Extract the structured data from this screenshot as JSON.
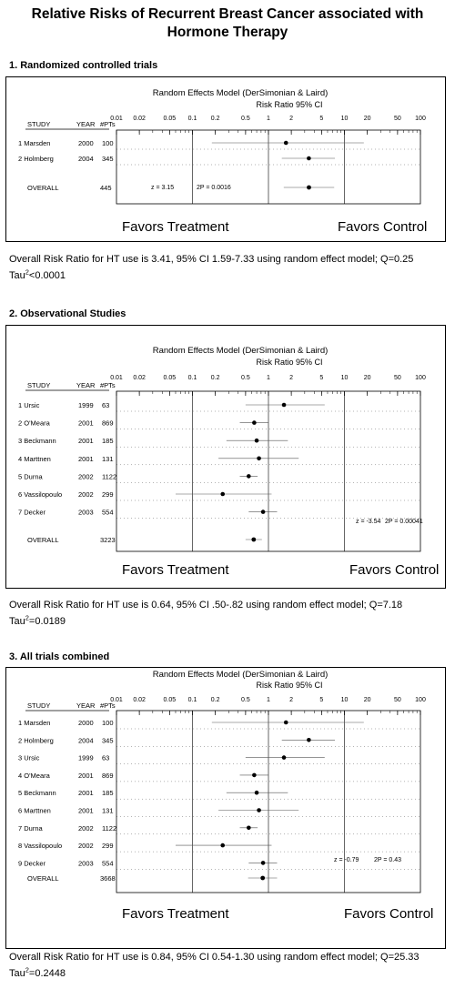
{
  "page_title": "Relative Risks of Recurrent Breast Cancer associated with Hormone Therapy",
  "chart_data": [
    {
      "type": "forest",
      "heading": "1. Randomized controlled trials",
      "model_title": "Random Effects Model  (DerSimonian & Laird)",
      "scale_label": "Risk Ratio  95%   CI",
      "col_study": "STUDY",
      "col_year": "YEAR",
      "col_pts": "#PTs",
      "x_scale": "log",
      "x_ticks": [
        0.01,
        0.02,
        0.05,
        0.1,
        0.2,
        0.5,
        1,
        2,
        5,
        10,
        20,
        50,
        100
      ],
      "x_tick_labels": [
        "0.01",
        "0.02",
        "0.05",
        "0.1",
        "0.2",
        "0.5",
        "1",
        "2",
        "5",
        "10",
        "20",
        "50",
        "100"
      ],
      "studies": [
        {
          "label": "1  Marsden",
          "year": "2000",
          "pts": "100",
          "rr": 1.7,
          "lo": 0.18,
          "hi": 18
        },
        {
          "label": "2  Holmberg",
          "year": "2004",
          "pts": "345",
          "rr": 3.4,
          "lo": 1.5,
          "hi": 7.5
        }
      ],
      "overall": {
        "label": "OVERALL",
        "pts": "445",
        "rr": 3.41,
        "lo": 1.59,
        "hi": 7.33
      },
      "z_text": "z =  3.15",
      "p_text": "2P = 0.0016",
      "favors_left": "Favors Treatment",
      "favors_right": "Favors Control",
      "summary_line1": "Overall Risk Ratio for HT use is 3.41, 95% CI 1.59-7.33 using random effect model; Q=0.25",
      "summary_line2_pre": "Tau",
      "summary_line2_sup": "2",
      "summary_line2_post": "<0.0001"
    },
    {
      "type": "forest",
      "heading": "2. Observational Studies",
      "model_title": "Random Effects Model  (DerSimonian & Laird)",
      "scale_label": "Risk Ratio  95%   CI",
      "col_study": "STUDY",
      "col_year": "YEAR",
      "col_pts": "#PTs",
      "x_scale": "log",
      "x_ticks": [
        0.01,
        0.02,
        0.05,
        0.1,
        0.2,
        0.5,
        1,
        2,
        5,
        10,
        20,
        50,
        100
      ],
      "x_tick_labels": [
        "0.01",
        "0.02",
        "0.05",
        "0.1",
        "0.2",
        "0.5",
        "1",
        "2",
        "5",
        "10",
        "20",
        "50",
        "100"
      ],
      "studies": [
        {
          "label": "1  Ursic",
          "year": "1999",
          "pts": "63",
          "rr": 1.6,
          "lo": 0.5,
          "hi": 5.5
        },
        {
          "label": "2  O'Meara",
          "year": "2001",
          "pts": "869",
          "rr": 0.65,
          "lo": 0.42,
          "hi": 1.0
        },
        {
          "label": "3  Beckmann",
          "year": "2001",
          "pts": "185",
          "rr": 0.7,
          "lo": 0.28,
          "hi": 1.8
        },
        {
          "label": "4  Marttnen",
          "year": "2001",
          "pts": "131",
          "rr": 0.75,
          "lo": 0.22,
          "hi": 2.5
        },
        {
          "label": "5  Durna",
          "year": "2002",
          "pts": "1122",
          "rr": 0.55,
          "lo": 0.42,
          "hi": 0.72
        },
        {
          "label": "6  Vassilopoulo",
          "year": "2002",
          "pts": "299",
          "rr": 0.25,
          "lo": 0.06,
          "hi": 1.1
        },
        {
          "label": "7  Decker",
          "year": "2003",
          "pts": "554",
          "rr": 0.85,
          "lo": 0.55,
          "hi": 1.3
        }
      ],
      "overall": {
        "label": "OVERALL",
        "pts": "3223",
        "rr": 0.64,
        "lo": 0.5,
        "hi": 0.82
      },
      "z_text": "z =  -3.54",
      "p_text": "2P = 0.00041",
      "favors_left": "Favors Treatment",
      "favors_right": "Favors Control",
      "summary_line1": "Overall Risk Ratio for HT use is 0.64, 95% CI .50-.82 using random effect model; Q=7.18",
      "summary_line2_pre": "Tau",
      "summary_line2_sup": "2",
      "summary_line2_post": "=0.0189"
    },
    {
      "type": "forest",
      "heading": "3. All trials combined",
      "model_title": "Random Effects Model  (DerSimonian & Laird)",
      "scale_label": "Risk Ratio  95%   CI",
      "col_study": "STUDY",
      "col_year": "YEAR",
      "col_pts": "#PTs",
      "x_scale": "log",
      "x_ticks": [
        0.01,
        0.02,
        0.05,
        0.1,
        0.2,
        0.5,
        1,
        2,
        5,
        10,
        20,
        50,
        100
      ],
      "x_tick_labels": [
        "0.01",
        "0.02",
        "0.05",
        "0.1",
        "0.2",
        "0.5",
        "1",
        "2",
        "5",
        "10",
        "20",
        "50",
        "100"
      ],
      "studies": [
        {
          "label": "1  Marsden",
          "year": "2000",
          "pts": "100",
          "rr": 1.7,
          "lo": 0.18,
          "hi": 18
        },
        {
          "label": "2  Holmberg",
          "year": "2004",
          "pts": "345",
          "rr": 3.4,
          "lo": 1.5,
          "hi": 7.5
        },
        {
          "label": "3  Ursic",
          "year": "1999",
          "pts": "63",
          "rr": 1.6,
          "lo": 0.5,
          "hi": 5.5
        },
        {
          "label": "4  O'Meara",
          "year": "2001",
          "pts": "869",
          "rr": 0.65,
          "lo": 0.42,
          "hi": 1.0
        },
        {
          "label": "5  Beckmann",
          "year": "2001",
          "pts": "185",
          "rr": 0.7,
          "lo": 0.28,
          "hi": 1.8
        },
        {
          "label": "6  Marttnen",
          "year": "2001",
          "pts": "131",
          "rr": 0.75,
          "lo": 0.22,
          "hi": 2.5
        },
        {
          "label": "7  Durna",
          "year": "2002",
          "pts": "1122",
          "rr": 0.55,
          "lo": 0.42,
          "hi": 0.72
        },
        {
          "label": "8  Vassilopoulo",
          "year": "2002",
          "pts": "299",
          "rr": 0.25,
          "lo": 0.06,
          "hi": 1.1
        },
        {
          "label": "9  Decker",
          "year": "2003",
          "pts": "554",
          "rr": 0.85,
          "lo": 0.55,
          "hi": 1.3
        }
      ],
      "overall": {
        "label": "OVERALL",
        "pts": "3668",
        "rr": 0.84,
        "lo": 0.54,
        "hi": 1.3
      },
      "z_text": "z =  -0.79",
      "p_text": "2P = 0.43",
      "favors_left": "Favors Treatment",
      "favors_right": "Favors Control",
      "summary_line1": "Overall Risk Ratio for HT use is 0.84, 95% CI 0.54-1.30 using random effect model; Q=25.33",
      "summary_line2_pre": "Tau",
      "summary_line2_sup": "2",
      "summary_line2_post": "=0.2448"
    }
  ]
}
